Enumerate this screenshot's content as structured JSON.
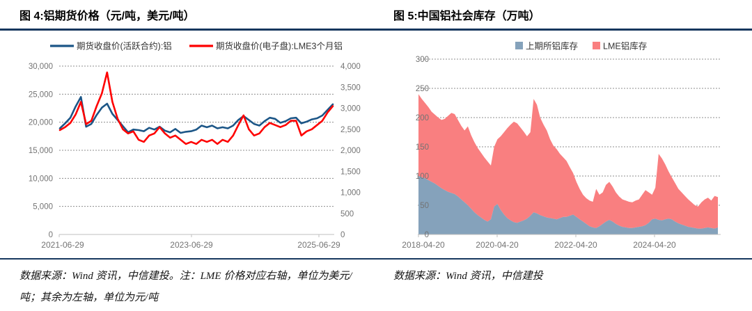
{
  "page": {
    "left_title": "图 4:铝期货价格（元/吨，美元/吨）",
    "right_title": "图 5:中国铝社会库存（万吨）",
    "left_footnote": "数据来源：Wind 资讯，中信建投。注：LME 价格对应右轴，单位为美元/吨；其余为左轴，单位为元/吨",
    "right_footnote": "数据来源：Wind 资讯，中信建投",
    "rule_color": "#17375e"
  },
  "chart_data": [
    {
      "type": "line",
      "title": "图 4:铝期货价格（元/吨，美元/吨）",
      "legend_position": "top-center",
      "grid": "dashed-horizontal",
      "x_tick_labels": [
        "2021-06-29",
        "2023-06-29",
        "2025-06-29"
      ],
      "x_note": "weekly/monthly points from 2021-06-29 to late 2025",
      "left_axis": {
        "min": 0,
        "max": 30000,
        "step": 5000,
        "ticks": [
          "0",
          "5,000",
          "10,000",
          "15,000",
          "20,000",
          "25,000",
          "30,000"
        ],
        "unit": "元/吨"
      },
      "right_axis": {
        "min": 0,
        "max": 4000,
        "step": 500,
        "ticks": [
          "0",
          "500",
          "1,000",
          "1,500",
          "2,000",
          "2,500",
          "3,000",
          "3,500",
          "4,000"
        ],
        "unit": "美元/吨"
      },
      "series": [
        {
          "name": "期货收盘价(活跃合约):铝",
          "axis": "left",
          "color": "#1c5687",
          "values": [
            18900,
            19800,
            20800,
            22800,
            24500,
            19200,
            19700,
            21300,
            22600,
            23300,
            21500,
            20400,
            19300,
            18200,
            18700,
            18600,
            18400,
            19000,
            18700,
            19200,
            18500,
            18200,
            18800,
            18100,
            18300,
            18400,
            18700,
            19400,
            19100,
            19400,
            18900,
            19100,
            18900,
            19400,
            20400,
            21100,
            20400,
            19700,
            19400,
            20200,
            20800,
            20600,
            19900,
            20200,
            20700,
            20800,
            19800,
            20100,
            20500,
            20700,
            21200,
            22200,
            23200
          ]
        },
        {
          "name": "期货收盘价(电子盘):LME3个月铝",
          "axis": "right",
          "color": "#fe0000",
          "values": [
            2480,
            2550,
            2650,
            2850,
            3150,
            2620,
            2700,
            3050,
            3350,
            3850,
            3150,
            2750,
            2500,
            2400,
            2450,
            2250,
            2200,
            2350,
            2400,
            2550,
            2400,
            2300,
            2350,
            2250,
            2150,
            2200,
            2150,
            2250,
            2200,
            2250,
            2150,
            2250,
            2200,
            2350,
            2600,
            2830,
            2500,
            2350,
            2400,
            2550,
            2650,
            2600,
            2550,
            2600,
            2700,
            2700,
            2350,
            2450,
            2500,
            2600,
            2700,
            2900,
            3050
          ]
        }
      ]
    },
    {
      "type": "area",
      "stacked": true,
      "title": "图 5:中国铝社会库存（万吨）",
      "legend_position": "top-center",
      "grid": "dashed-horizontal",
      "x_tick_labels": [
        "2018-04-20",
        "2020-04-20",
        "2022-04-20",
        "2024-04-20"
      ],
      "x_note": "monthly points from 2018-04 to 2025-11",
      "y_axis": {
        "min": 0,
        "max": 300,
        "step": 50,
        "ticks": [
          "0",
          "50",
          "100",
          "150",
          "200",
          "250",
          "300"
        ],
        "unit": "万吨"
      },
      "series": [
        {
          "name": "上期所铝库存",
          "color": "#85a2bb",
          "values": [
            100,
            98,
            96,
            93,
            90,
            87,
            83,
            79,
            76,
            73,
            71,
            69,
            65,
            60,
            55,
            50,
            44,
            38,
            33,
            29,
            25,
            22,
            26,
            48,
            52,
            42,
            34,
            28,
            24,
            21,
            20,
            22,
            24,
            27,
            32,
            38,
            36,
            33,
            31,
            29,
            28,
            27,
            26,
            28,
            30,
            30,
            32,
            34,
            30,
            26,
            22,
            18,
            14,
            12,
            11,
            14,
            18,
            22,
            25,
            22,
            18,
            15,
            13,
            12,
            11,
            11,
            12,
            13,
            14,
            16,
            20,
            26,
            27,
            25,
            24,
            26,
            27,
            26,
            22,
            19,
            17,
            15,
            13,
            12,
            11,
            10,
            10,
            11,
            12,
            11,
            10,
            12
          ]
        },
        {
          "name": "LME铝库存",
          "color": "#f97f80",
          "values": [
            140,
            134,
            129,
            125,
            120,
            118,
            117,
            117,
            122,
            130,
            137,
            137,
            131,
            126,
            123,
            135,
            126,
            120,
            115,
            111,
            107,
            103,
            92,
            102,
            111,
            126,
            141,
            154,
            164,
            172,
            170,
            161,
            152,
            141,
            143,
            194,
            186,
            167,
            157,
            149,
            135,
            125,
            120,
            110,
            102,
            96,
            83,
            71,
            60,
            52,
            46,
            44,
            44,
            44,
            67,
            54,
            54,
            63,
            65,
            60,
            54,
            50,
            47,
            46,
            45,
            44,
            46,
            47,
            54,
            60,
            52,
            42,
            53,
            113,
            106,
            94,
            81,
            72,
            66,
            59,
            55,
            51,
            47,
            43,
            39,
            38,
            45,
            49,
            51,
            47,
            56,
            52
          ]
        }
      ]
    }
  ]
}
